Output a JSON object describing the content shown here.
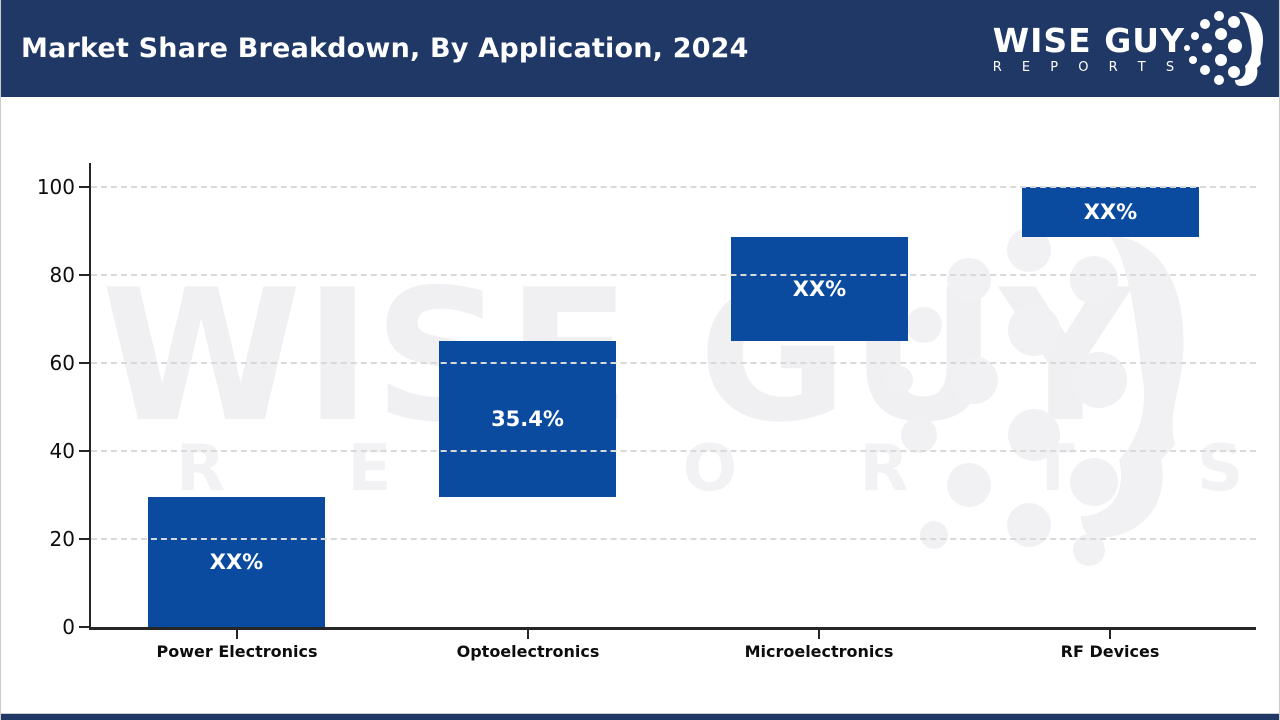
{
  "header": {
    "title": "Market Share Breakdown, By Application, 2024",
    "bg_color": "#1f3866",
    "logo": {
      "line1": "WISE GUY",
      "line2": "R E P O R T S"
    }
  },
  "watermark": {
    "line1": "WISE GUY",
    "line2": "R E P O R T S"
  },
  "chart_data": {
    "type": "bar",
    "subtype": "waterfall-stacked-percentage",
    "title": "Market Share Breakdown, By Application, 2024",
    "categories": [
      "Power Electronics",
      "Optoelectronics",
      "Microelectronics",
      "RF Devices"
    ],
    "values": [
      29.5,
      35.4,
      23.7,
      11.4
    ],
    "bars": [
      {
        "category": "Power Electronics",
        "start": 0,
        "end": 29.5,
        "label": "XX%"
      },
      {
        "category": "Optoelectronics",
        "start": 29.5,
        "end": 64.9,
        "label": "35.4%"
      },
      {
        "category": "Microelectronics",
        "start": 64.9,
        "end": 88.6,
        "label": "XX%"
      },
      {
        "category": "RF Devices",
        "start": 88.6,
        "end": 100,
        "label": "XX%"
      }
    ],
    "xlabel": "",
    "ylabel": "",
    "ylim": [
      0,
      100
    ],
    "yticks": [
      0,
      20,
      40,
      60,
      80,
      100
    ],
    "grid": "horizontal-dashed-over-bars",
    "legend": "none",
    "bar_color": "#0a4a9f",
    "bar_label_color": "#ffffff",
    "grid_color": "#d9d9d9",
    "axis_color": "#262626"
  }
}
